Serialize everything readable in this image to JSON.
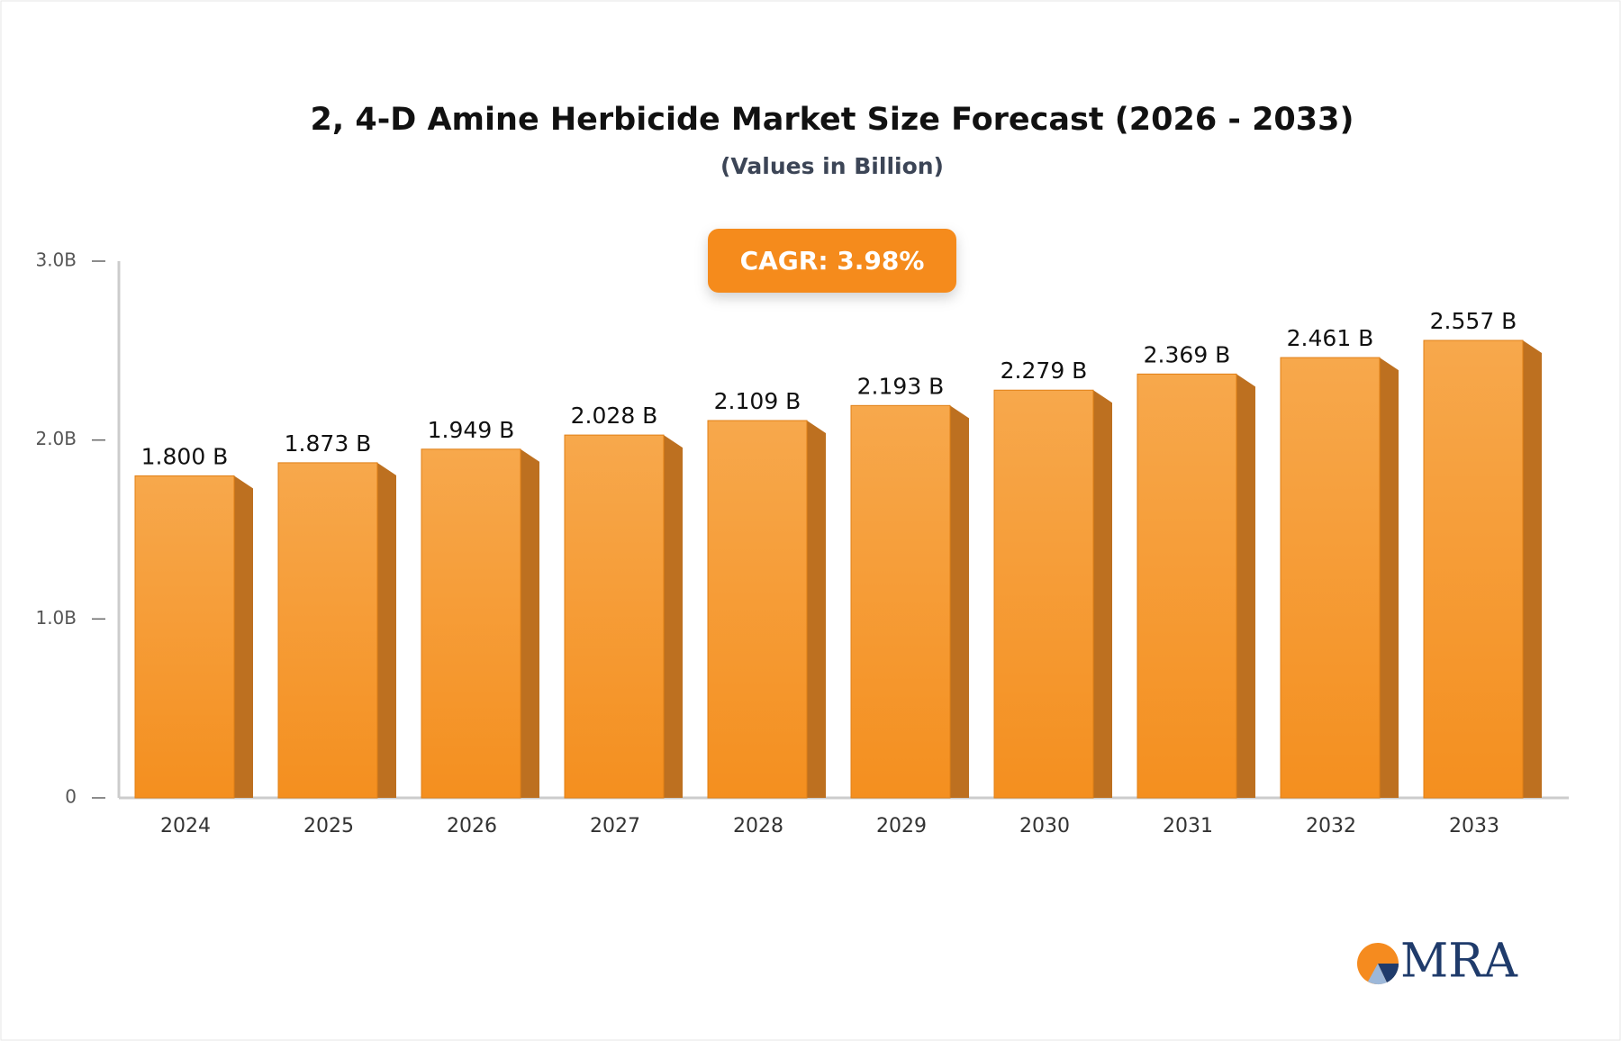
{
  "chart_data": {
    "type": "bar",
    "title": "2, 4-D Amine Herbicide Market Size Forecast (2026 - 2033)",
    "subtitle": "(Values in Billion)",
    "annotation": "CAGR: 3.98%",
    "logo": "MRA",
    "categories": [
      "2024",
      "2025",
      "2026",
      "2027",
      "2028",
      "2029",
      "2030",
      "2031",
      "2032",
      "2033"
    ],
    "values": [
      1.8,
      1.873,
      1.949,
      2.028,
      2.109,
      2.193,
      2.279,
      2.369,
      2.461,
      2.557
    ],
    "value_labels": [
      "1.800 B",
      "1.873 B",
      "1.949 B",
      "2.028 B",
      "2.109 B",
      "2.193 B",
      "2.279 B",
      "2.369 B",
      "2.461 B",
      "2.557 B"
    ],
    "color": "#f5962a",
    "ylim": [
      0,
      3
    ],
    "yticks": [
      0,
      {
        "value": 1,
        "label": "1.0B"
      },
      {
        "value": 2,
        "label": "2.0B"
      },
      {
        "value": 3,
        "label": "3.0B"
      }
    ],
    "grid": false
  }
}
